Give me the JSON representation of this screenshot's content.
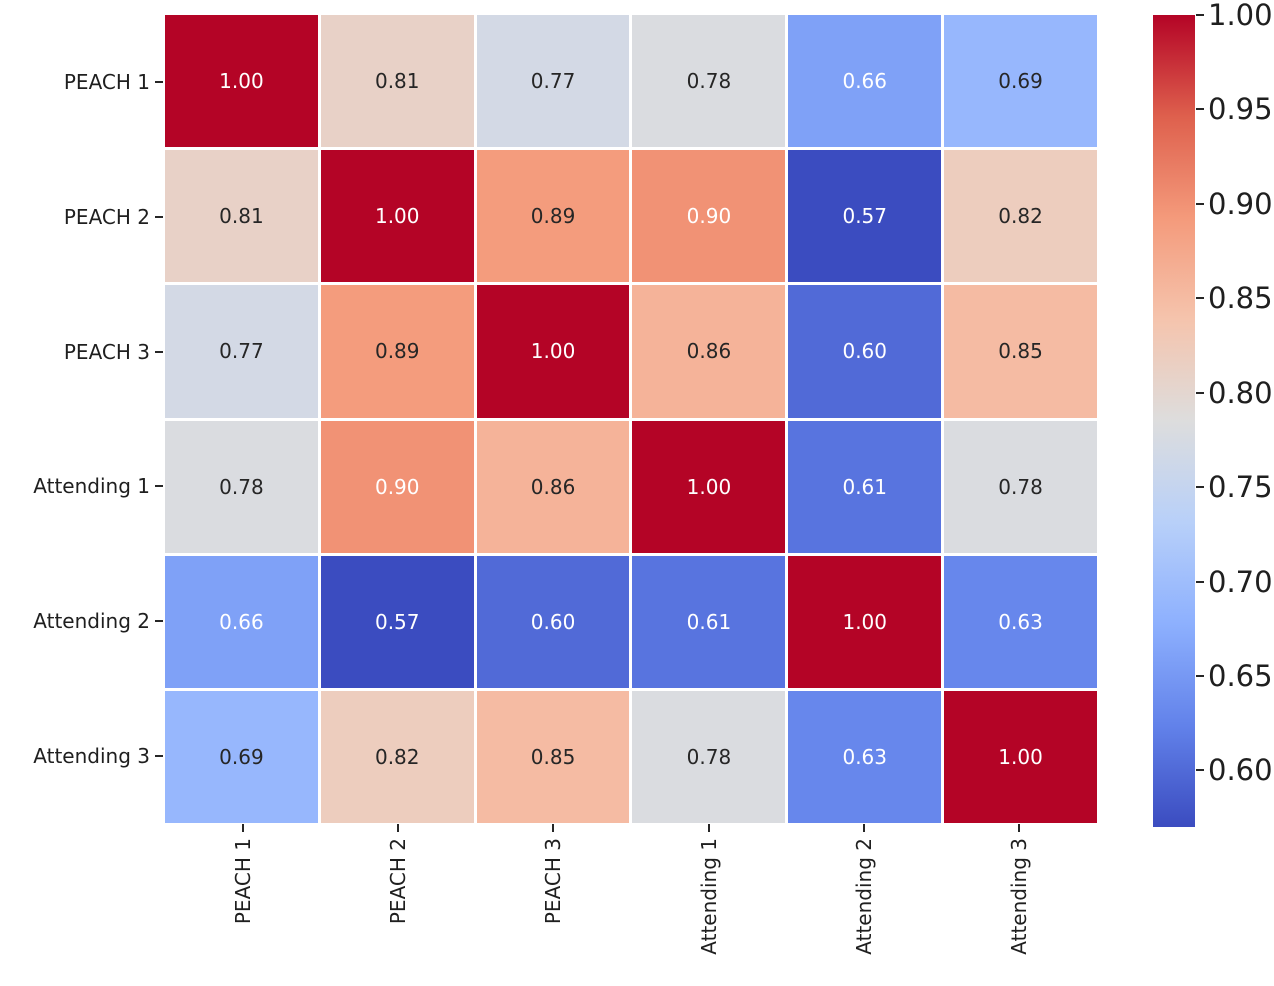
{
  "chart_data": {
    "type": "heatmap",
    "title": "",
    "x_categories": [
      "PEACH 1",
      "PEACH 2",
      "PEACH 3",
      "Attending 1",
      "Attending 2",
      "Attending 3"
    ],
    "y_categories": [
      "PEACH 1",
      "PEACH 2",
      "PEACH 3",
      "Attending 1",
      "Attending 2",
      "Attending 3"
    ],
    "matrix": [
      [
        1.0,
        0.81,
        0.77,
        0.78,
        0.66,
        0.69
      ],
      [
        0.81,
        1.0,
        0.89,
        0.9,
        0.57,
        0.82
      ],
      [
        0.77,
        0.89,
        1.0,
        0.86,
        0.6,
        0.85
      ],
      [
        0.78,
        0.9,
        0.86,
        1.0,
        0.61,
        0.78
      ],
      [
        0.66,
        0.57,
        0.6,
        0.61,
        1.0,
        0.63
      ],
      [
        0.69,
        0.82,
        0.85,
        0.78,
        0.63,
        1.0
      ]
    ],
    "annotation_decimals": 2,
    "vmin": 0.57,
    "vmax": 1.0,
    "x_tick_rotation_deg": 90,
    "grid_line_color": "#ffffff",
    "tick_color": "#262626",
    "label_color": "#1f1f1f",
    "annotation_text_colors": {
      "on_light": "#262626",
      "on_dark": "#ffffff"
    },
    "colorbar": {
      "position": "right",
      "tick_labels": [
        "1.00",
        "0.95",
        "0.90",
        "0.85",
        "0.80",
        "0.75",
        "0.70",
        "0.65",
        "0.60"
      ],
      "tick_values": [
        1.0,
        0.95,
        0.9,
        0.85,
        0.8,
        0.75,
        0.7,
        0.65,
        0.6
      ]
    },
    "colormap": {
      "name": "coolwarm",
      "anchors": [
        {
          "t": 0.0,
          "color": "#3b4cc0"
        },
        {
          "t": 0.125,
          "color": "#6282ea"
        },
        {
          "t": 0.25,
          "color": "#8db0fe"
        },
        {
          "t": 0.375,
          "color": "#b8d0f9"
        },
        {
          "t": 0.5,
          "color": "#dddddd"
        },
        {
          "t": 0.625,
          "color": "#f5c4ad"
        },
        {
          "t": 0.75,
          "color": "#f49a7b"
        },
        {
          "t": 0.875,
          "color": "#de604d"
        },
        {
          "t": 1.0,
          "color": "#b40426"
        }
      ]
    }
  }
}
